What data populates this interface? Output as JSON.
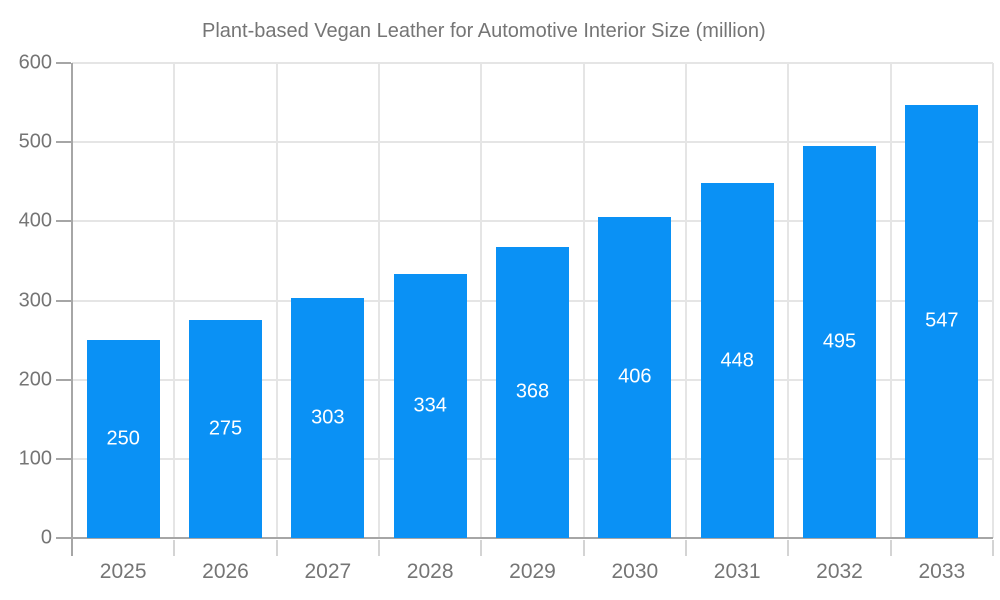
{
  "chart_data": {
    "type": "bar",
    "title": "Plant-based Vegan Leather for Automotive Interior Size (million)",
    "categories": [
      "2025",
      "2026",
      "2027",
      "2028",
      "2029",
      "2030",
      "2031",
      "2032",
      "2033"
    ],
    "values": [
      250,
      275,
      303,
      334,
      368,
      406,
      448,
      495,
      547
    ],
    "xlabel": "",
    "ylabel": "",
    "ylim": [
      0,
      600
    ],
    "ytick_step": 100,
    "yticks": [
      0,
      100,
      200,
      300,
      400,
      500,
      600
    ],
    "grid": true,
    "legend_position": "top",
    "value_labels": "inside-center",
    "colors": {
      "bar": "#0a91f5",
      "bar_label_text": "#ffffff",
      "axis_text": "#757575",
      "axis_line": "#a6a6a6",
      "gridline": "#e5e5e5",
      "background": "#ffffff"
    }
  }
}
